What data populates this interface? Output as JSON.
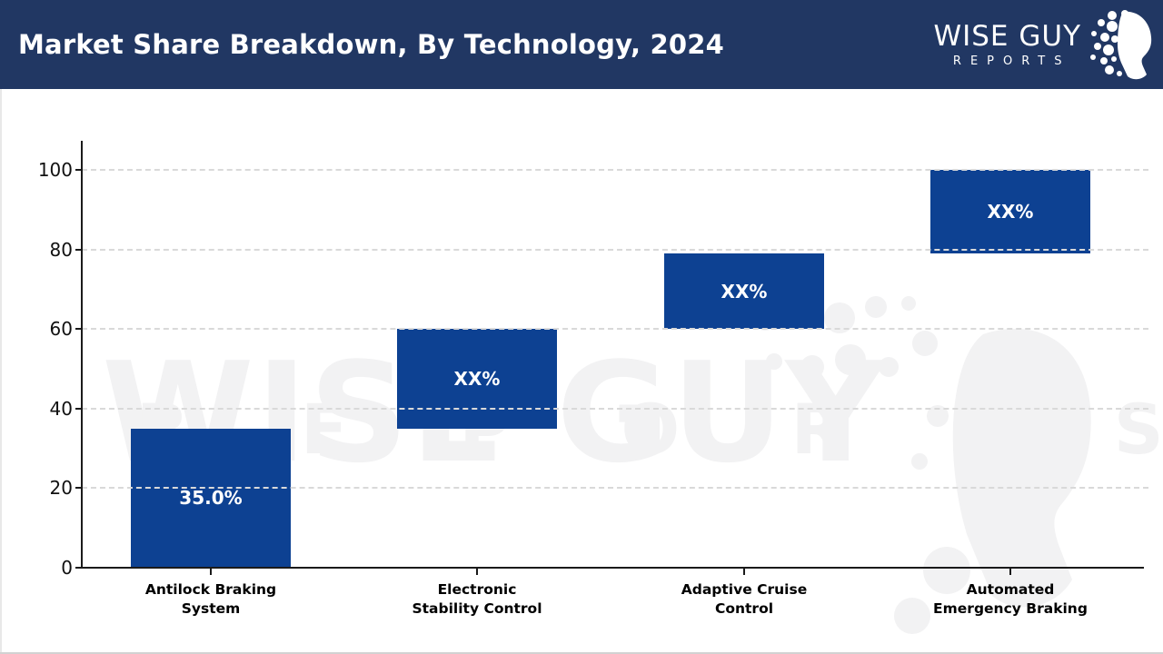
{
  "header": {
    "title": "Market Share Breakdown, By Technology, 2024",
    "bg_color": "#213763",
    "logo": {
      "line1": "WISE GUY",
      "line2": "REPORTS"
    }
  },
  "watermark": {
    "line1": "WISE GUY",
    "line2": "REPORTS"
  },
  "chart_data": {
    "type": "bar",
    "subtype": "waterfall",
    "title": "Market Share Breakdown, By Technology, 2024",
    "categories": [
      [
        "Antilock Braking",
        "System"
      ],
      [
        "Electronic",
        "Stability Control"
      ],
      [
        "Adaptive Cruise",
        "Control"
      ],
      [
        "Automated",
        "Emergency Braking"
      ]
    ],
    "segments": [
      {
        "start": 0,
        "end": 35,
        "label": "35.0%"
      },
      {
        "start": 35,
        "end": 60,
        "label": "XX%"
      },
      {
        "start": 60,
        "end": 79,
        "label": "XX%"
      },
      {
        "start": 79,
        "end": 100,
        "label": "XX%"
      }
    ],
    "yticks": [
      0,
      20,
      40,
      60,
      80,
      100
    ],
    "ylim": [
      0,
      105
    ],
    "bar_color": "#0d4192",
    "grid": true,
    "grid_color": "#d9d9d9",
    "legend": false
  }
}
